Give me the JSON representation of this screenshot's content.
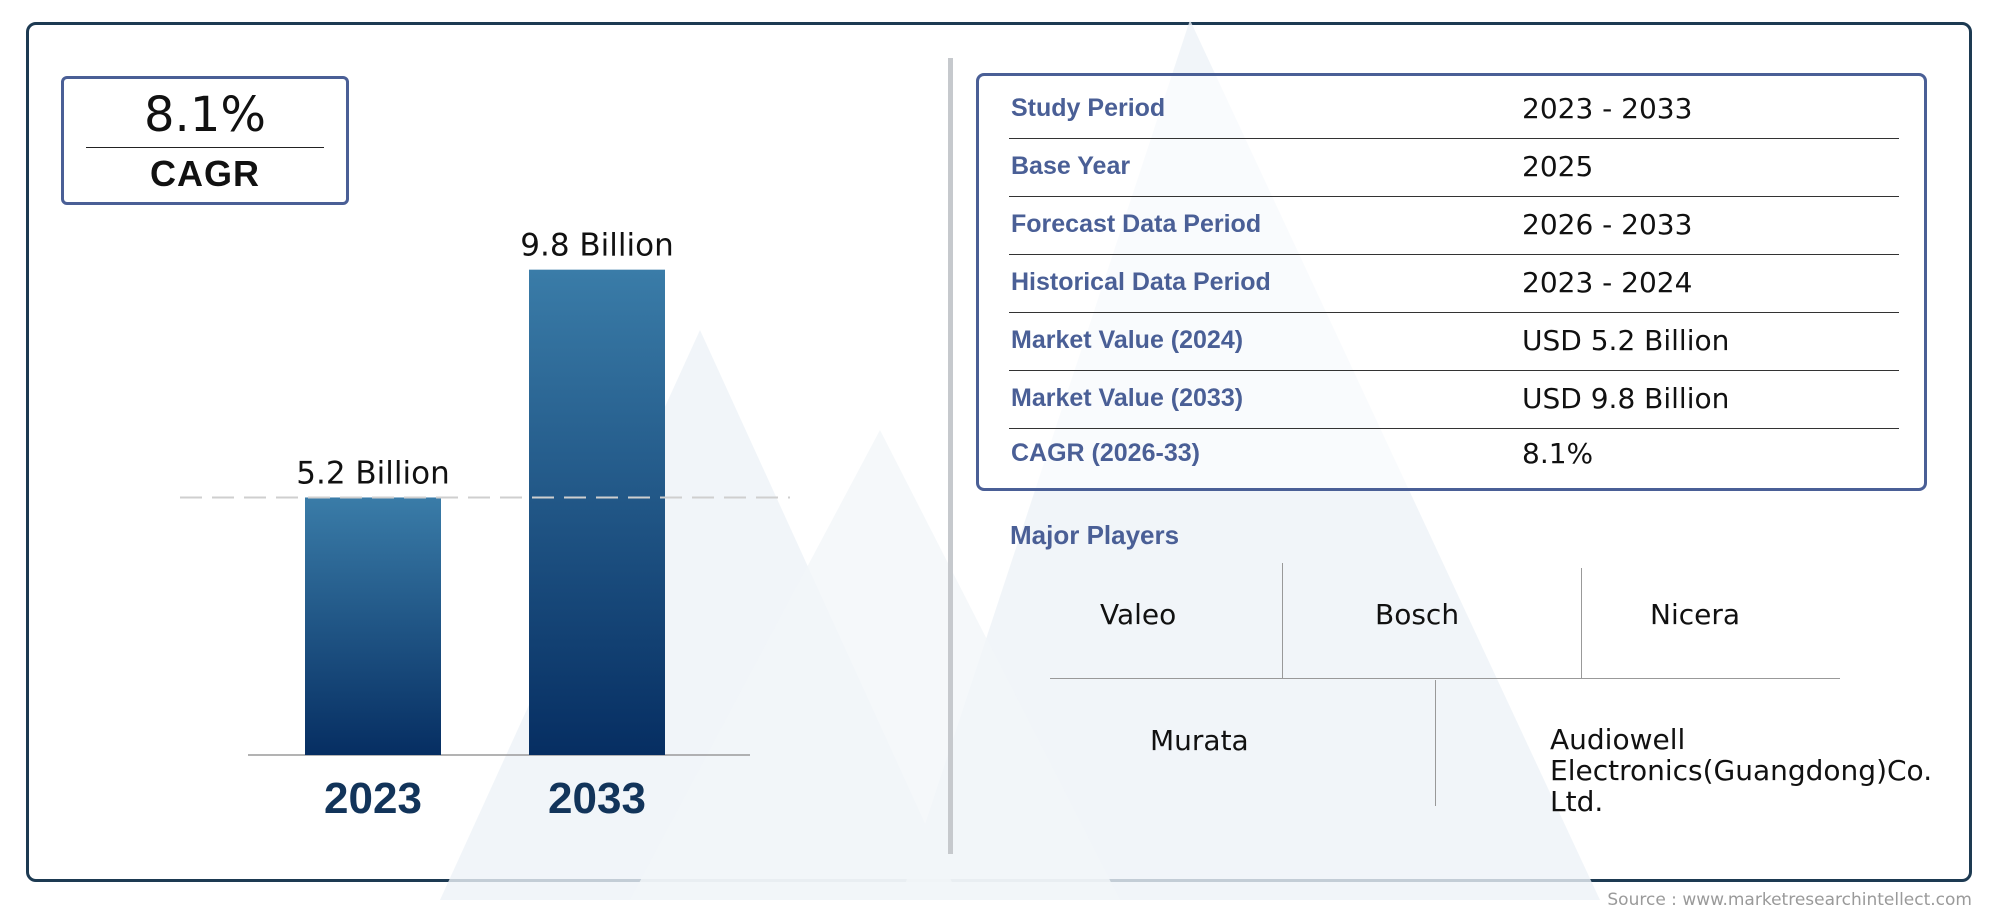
{
  "cagr_badge": {
    "value": "8.1%",
    "label": "CAGR"
  },
  "chart_data": {
    "type": "bar",
    "categories": [
      "2023",
      "2033"
    ],
    "values": [
      5.2,
      9.8
    ],
    "data_labels": [
      "5.2 Billion",
      "9.8 Billion"
    ],
    "ylim": [
      0,
      10.5
    ],
    "grid": false,
    "reference_line_at": 5.2,
    "bar_color_top": "#3a7ca8",
    "bar_color_bottom": "#062e62",
    "category_label_color": "#12345a"
  },
  "summary_table": {
    "rows": [
      {
        "label": "Study Period",
        "value": "2023 - 2033"
      },
      {
        "label": "Base Year",
        "value": "2025"
      },
      {
        "label": "Forecast Data Period",
        "value": "2026 - 2033"
      },
      {
        "label": "Historical Data Period",
        "value": "2023 - 2024"
      },
      {
        "label": "Market Value (2024)",
        "value": "USD 5.2 Billion"
      },
      {
        "label": "Market Value (2033)",
        "value": "USD 9.8 Billion"
      },
      {
        "label": "CAGR (2026-33)",
        "value": "8.1%"
      }
    ]
  },
  "major_players": {
    "title": "Major Players",
    "names": [
      "Valeo",
      "Bosch",
      "Nicera",
      "Murata",
      "Audiowell Electronics(Guangdong)Co. Ltd."
    ]
  },
  "source": "Source : www.marketresearchintellect.com",
  "colors": {
    "accent": "#4a5f96",
    "frame": "#1d3a52"
  }
}
